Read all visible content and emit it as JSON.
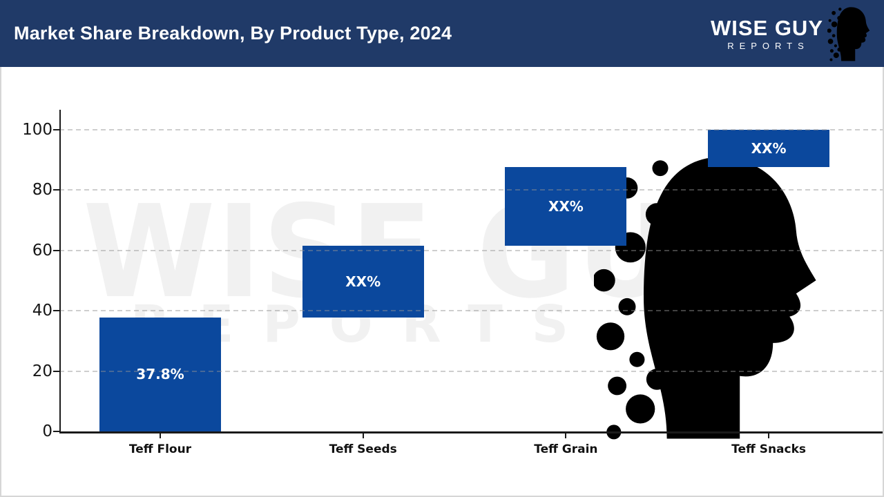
{
  "header": {
    "title": "Market Share Breakdown, By Product Type, 2024",
    "logo": {
      "line1": "WISE GUY",
      "line2": "REPORTS"
    }
  },
  "watermark": {
    "line1": "WISE GUY",
    "line2": "REPORTS"
  },
  "chart_data": {
    "type": "bar",
    "subtype": "waterfall",
    "title": "Market Share Breakdown, By Product Type, 2024",
    "categories": [
      "Teff Flour",
      "Teff Seeds",
      "Teff Grain",
      "Teff Snacks"
    ],
    "segments": [
      {
        "start": 0,
        "end": 37.8,
        "value": 37.8,
        "label": "37.8%"
      },
      {
        "start": 37.8,
        "end": 61.5,
        "value": 23.7,
        "label": "XX%"
      },
      {
        "start": 61.5,
        "end": 87.5,
        "value": 26.0,
        "label": "XX%"
      },
      {
        "start": 87.5,
        "end": 100,
        "value": 12.5,
        "label": "XX%"
      }
    ],
    "yticks": [
      0,
      20,
      40,
      60,
      80,
      100
    ],
    "ylim": [
      0,
      106
    ],
    "xlabel": "",
    "ylabel": "",
    "grid": "horizontal-dashed",
    "legend": "none",
    "colors": {
      "bar": "#0b489d",
      "bar_label": "#ffffff",
      "axis": "#1a1a1a",
      "header_bg": "#203a68",
      "watermark": "#f1f1f1",
      "frame_border": "#d6d6d6"
    }
  }
}
